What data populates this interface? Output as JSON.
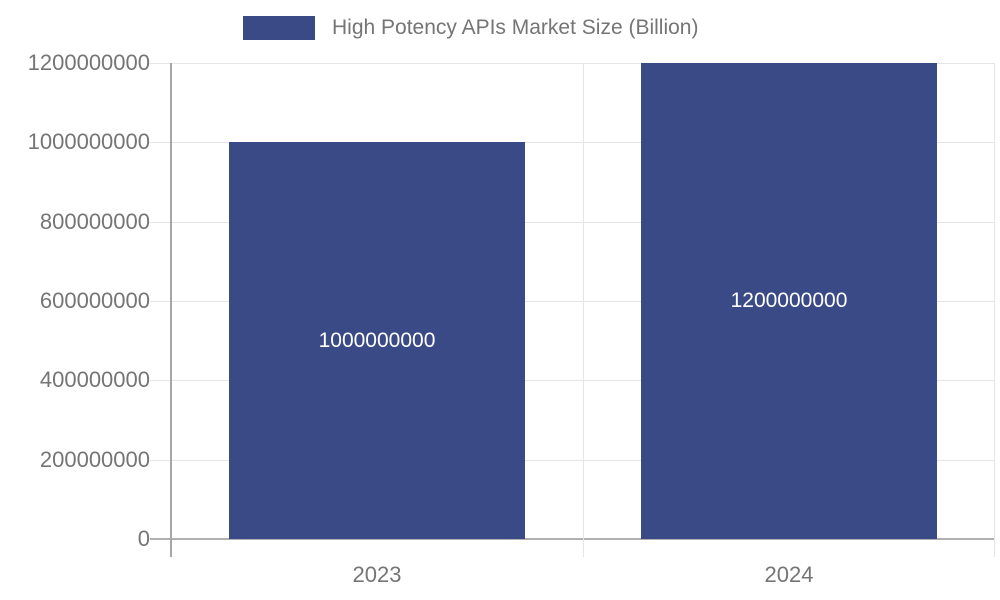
{
  "chart_data": {
    "type": "bar",
    "title": "High Potency APIs Market Size (Billion)",
    "categories": [
      "2023",
      "2024"
    ],
    "values": [
      1000000000,
      1200000000
    ],
    "value_labels": [
      "1000000000",
      "1200000000"
    ],
    "yticks": [
      0,
      200000000,
      400000000,
      600000000,
      800000000,
      1000000000,
      1200000000
    ],
    "ytick_labels": [
      "0",
      "200000000",
      "400000000",
      "600000000",
      "800000000",
      "1000000000",
      "1200000000"
    ],
    "ylim": [
      0,
      1200000000
    ],
    "xlabel": "",
    "ylabel": "",
    "grid": true,
    "legend_position": "top",
    "colors": {
      "bar": "#3A4A87",
      "axis_text": "#757575",
      "grid_line": "#e5e5e5",
      "axis_line": "#a6a6a6",
      "baseline": "#b0b0b0",
      "value_label": "#ffffff",
      "background": "#ffffff"
    }
  }
}
